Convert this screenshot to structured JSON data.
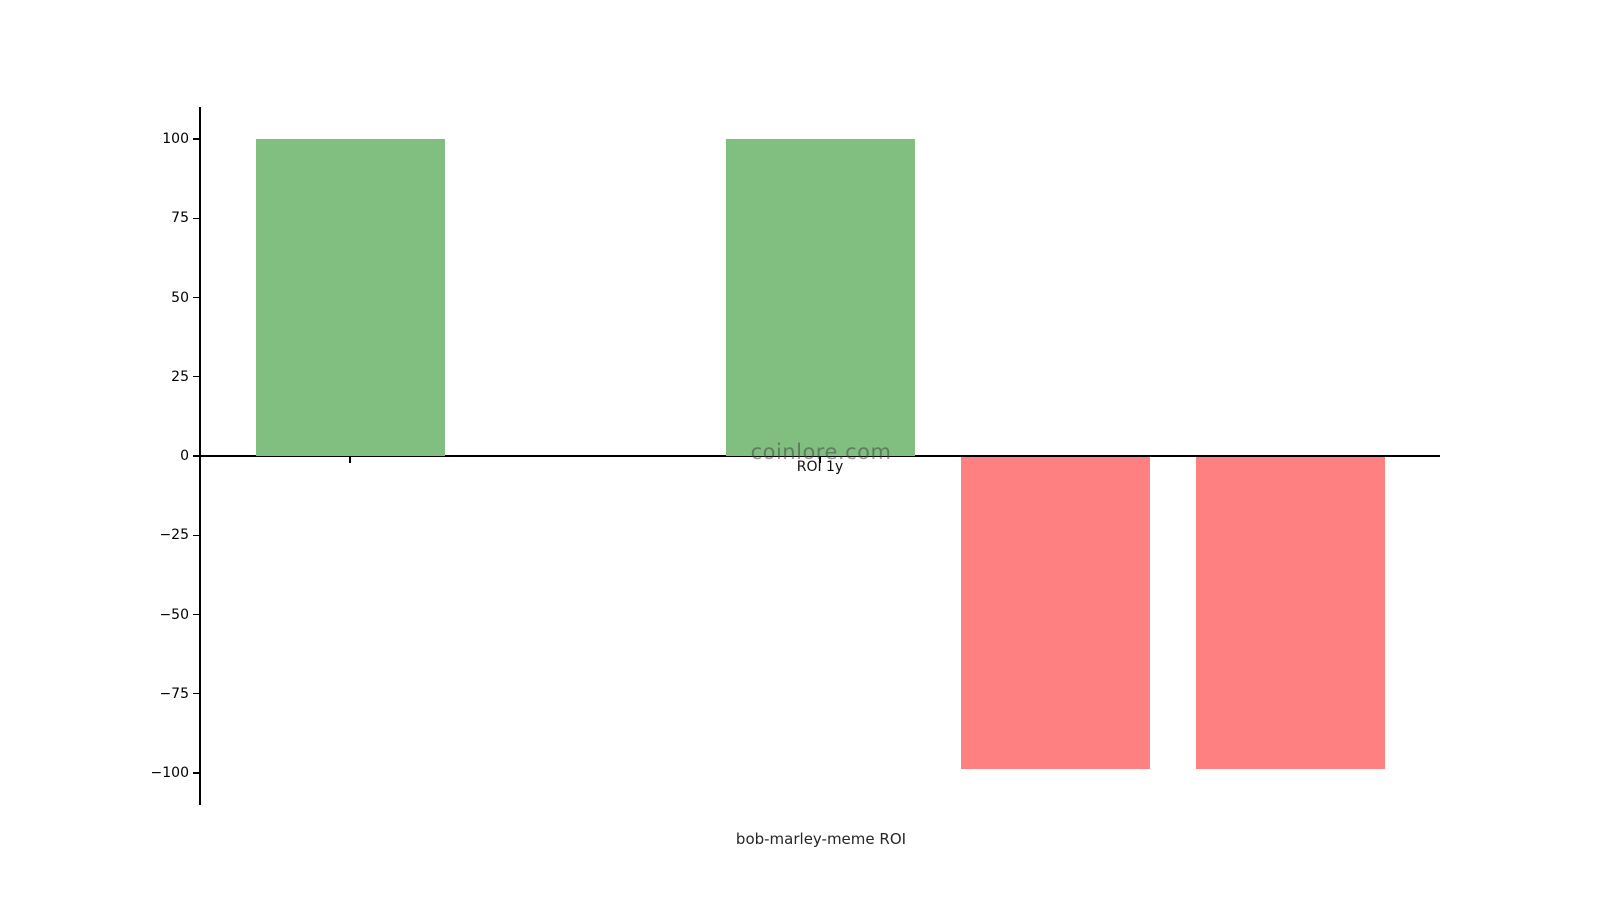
{
  "watermark": {
    "text": "coinlore.com",
    "color": "#464646"
  },
  "chart_data": {
    "type": "bar",
    "title": "bob-marley-meme ROI",
    "categories": [
      "",
      "",
      "ROI 1y",
      "",
      ""
    ],
    "values": [
      100,
      0,
      100,
      -98.5,
      -98.5
    ],
    "x_tick_label": "ROI 1y",
    "x_tick_label_slot": 2,
    "x_tick_mark_slots": [
      0,
      2
    ],
    "y_ticks": [
      100,
      75,
      50,
      25,
      0,
      -25,
      -50,
      -75,
      -100
    ],
    "ylim": [
      -110,
      110
    ],
    "positive_color": "#80bf80",
    "negative_color": "#ff8080",
    "axis_color": "#000000",
    "grid": false,
    "legend": false
  }
}
